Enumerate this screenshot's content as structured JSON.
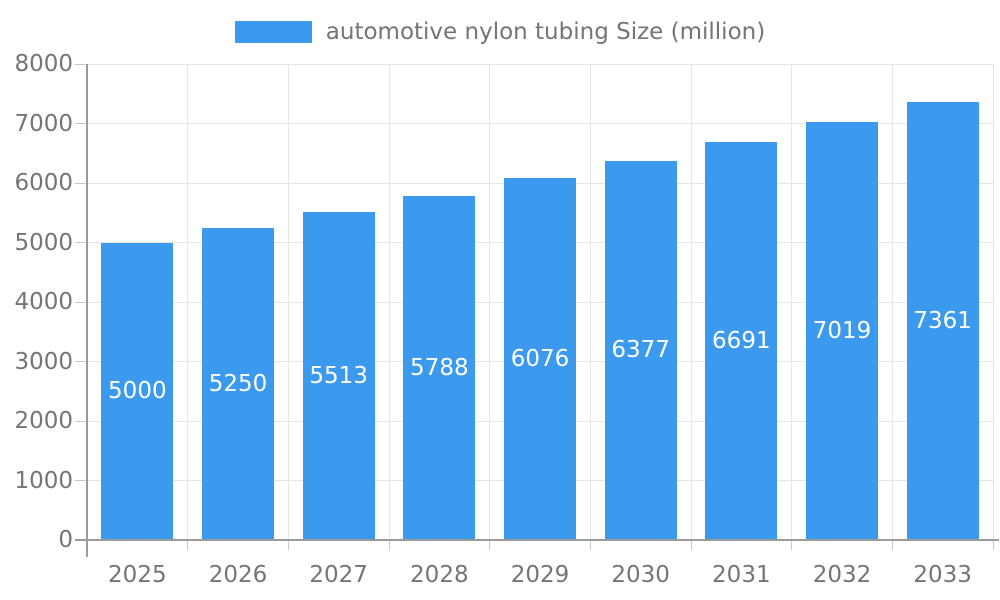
{
  "chart_data": {
    "type": "bar",
    "title": "automotive nylon tubing Size (million)",
    "legend": "automotive nylon tubing Size (million)",
    "legend_position": "top-center",
    "categories": [
      "2025",
      "2026",
      "2027",
      "2028",
      "2029",
      "2030",
      "2031",
      "2032",
      "2033"
    ],
    "values": [
      5000,
      5250,
      5513,
      5788,
      6076,
      6377,
      6691,
      7019,
      7361
    ],
    "xlabel": "",
    "ylabel": "",
    "ylim": [
      0,
      8000
    ],
    "ytick_step": 1000,
    "yticks": [
      0,
      1000,
      2000,
      3000,
      4000,
      5000,
      6000,
      7000,
      8000
    ],
    "grid": "on",
    "bar_color": "#3b99ee",
    "value_label_color": "#ffffff",
    "axis_label_color": "#757575",
    "gridline_color": "#e6e6e6",
    "axis_line_color": "#9a9a9a"
  }
}
